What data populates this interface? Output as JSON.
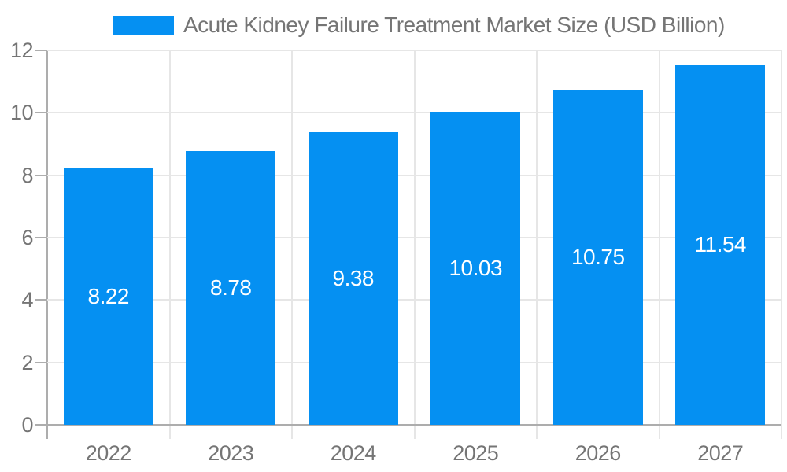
{
  "legend": {
    "label": "Acute Kidney Failure Treatment Market Size (USD Billion)"
  },
  "chart_data": {
    "type": "bar",
    "title": "Acute Kidney Failure Treatment Market Size (USD Billion)",
    "categories": [
      "2022",
      "2023",
      "2024",
      "2025",
      "2026",
      "2027"
    ],
    "values": [
      8.22,
      8.78,
      9.38,
      10.03,
      10.75,
      11.54
    ],
    "value_labels": [
      "8.22",
      "8.78",
      "9.38",
      "10.03",
      "10.75",
      "11.54"
    ],
    "series_name": "Acute Kidney Failure Treatment Market Size (USD Billion)",
    "xlabel": "",
    "ylabel": "",
    "ylim": [
      0,
      12
    ],
    "yticks": [
      0,
      2,
      4,
      6,
      8,
      10,
      12
    ],
    "grid": true,
    "legend_position": "top",
    "colors": {
      "bar": "#0590f2",
      "bar_value_text": "#ffffff",
      "axis_text": "#757575",
      "gridline": "#e6e6e6",
      "axis_line": "#adadad",
      "background": "#ffffff"
    }
  }
}
